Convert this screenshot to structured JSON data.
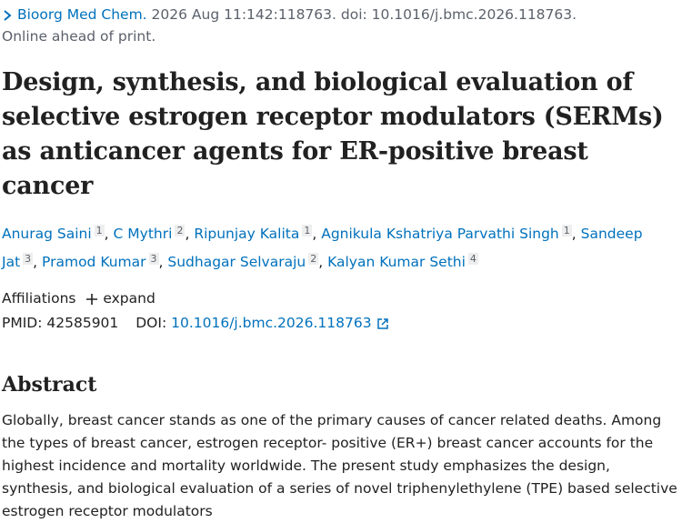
{
  "citation": {
    "journal": "Bioorg Med Chem.",
    "details": "2026 Aug 11:142:118763. doi: 10.1016/j.bmc.2026.118763.",
    "status": "Online ahead of print."
  },
  "title": "Design, synthesis, and biological evaluation of selective estrogen receptor modulators (SERMs) as anticancer agents for ER-positive breast cancer",
  "authors": {
    "separator": ",",
    "list": [
      {
        "name": "Anurag Saini",
        "aff": "1"
      },
      {
        "name": "C Mythri",
        "aff": "2"
      },
      {
        "name": "Ripunjay Kalita",
        "aff": "1"
      },
      {
        "name": "Agnikula Kshatriya Parvathi Singh",
        "aff": "1"
      },
      {
        "name": "Sandeep Jat",
        "aff": "3"
      },
      {
        "name": "Pramod Kumar",
        "aff": "3"
      },
      {
        "name": "Sudhagar Selvaraju",
        "aff": "2"
      },
      {
        "name": "Kalyan Kumar Sethi",
        "aff": "4"
      }
    ]
  },
  "affiliations": {
    "label": "Affiliations",
    "toggle": "expand"
  },
  "ids": {
    "pmid_label": "PMID:",
    "pmid": "42585901",
    "doi_label": "DOI:",
    "doi": "10.1016/j.bmc.2026.118763"
  },
  "abstract": {
    "heading": "Abstract",
    "text": "Globally, breast cancer stands as one of the primary causes of cancer related deaths. Among the types of breast cancer, estrogen receptor- positive (ER+) breast cancer accounts for the highest incidence and mortality worldwide. The present study emphasizes the design, synthesis, and biological evaluation of a series of novel triphenylethylene (TPE) based selective estrogen receptor modulators"
  }
}
